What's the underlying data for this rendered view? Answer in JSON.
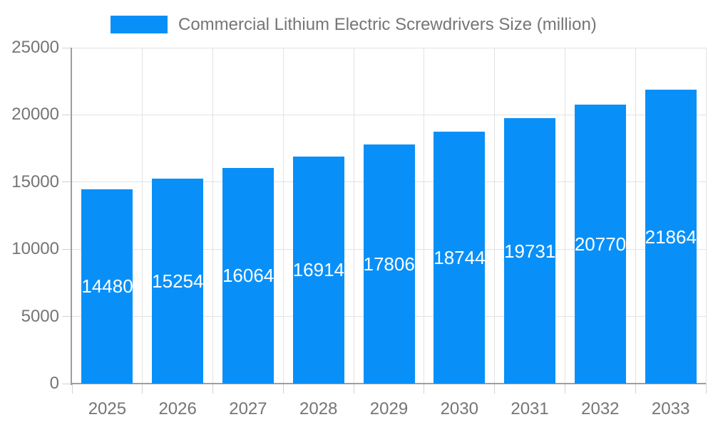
{
  "chart_data": {
    "type": "bar",
    "title": "Commercial Lithium Electric Screwdrivers Size (million)",
    "categories": [
      "2025",
      "2026",
      "2027",
      "2028",
      "2029",
      "2030",
      "2031",
      "2032",
      "2033"
    ],
    "values": [
      14480,
      15254,
      16064,
      16914,
      17806,
      18744,
      19731,
      20770,
      21864
    ],
    "xlabel": "",
    "ylabel": "",
    "ylim": [
      0,
      25000
    ],
    "yticks": [
      0,
      5000,
      10000,
      15000,
      20000,
      25000
    ],
    "grid": true,
    "legend_position": "top",
    "bar_labels_visible": true,
    "colors": {
      "bar": "#0990F8",
      "bar_label": "#FFFFFF",
      "axis_text": "#757575",
      "grid_line": "#E2E2E2",
      "axis_line": "#9E9E9E",
      "tick_mark": "#D2D2D2",
      "background": "#FFFFFF"
    }
  }
}
